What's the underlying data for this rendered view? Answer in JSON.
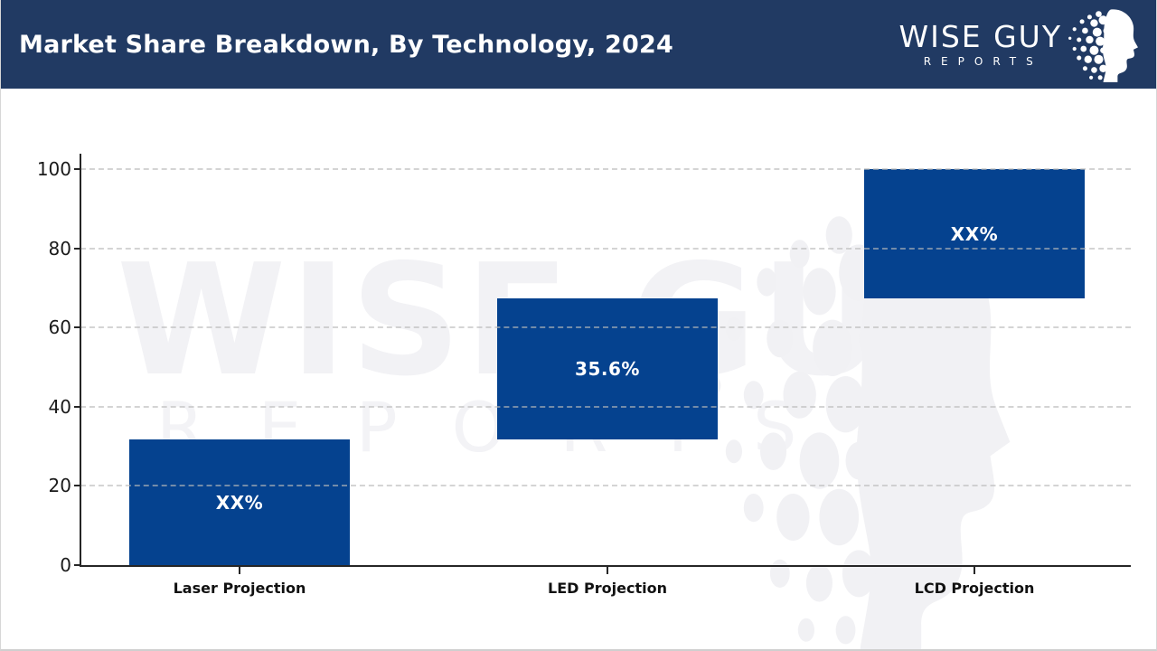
{
  "header": {
    "title": "Market Share Breakdown, By Technology, 2024",
    "logo": {
      "brand_line1": "WISE GUY",
      "brand_line2": "REPORTS"
    }
  },
  "watermark": {
    "line1": "WISE GUY",
    "line2": "REPORTS"
  },
  "chart_data": {
    "type": "bar",
    "variant": "waterfall",
    "title": "Market Share Breakdown, By Technology, 2024",
    "categories": [
      "Laser Projection",
      "LED Projection",
      "LCD Projection"
    ],
    "segments": [
      {
        "category": "Laser Projection",
        "start": 0,
        "end": 31.7,
        "value": 31.7,
        "value_label": "XX%"
      },
      {
        "category": "LED Projection",
        "start": 31.7,
        "end": 67.3,
        "value": 35.6,
        "value_label": "35.6%"
      },
      {
        "category": "LCD Projection",
        "start": 67.3,
        "end": 100,
        "value": 32.7,
        "value_label": "XX%"
      }
    ],
    "xlabel": "",
    "ylabel": "",
    "ylim": [
      0,
      100
    ],
    "yticks": [
      0,
      20,
      40,
      60,
      80,
      100
    ],
    "grid": {
      "horizontal": true,
      "style": "dashed",
      "drawn_over_bars": true
    },
    "legend": "none",
    "colors": {
      "bar": "#05428F",
      "header_bg": "#213A63",
      "axis": "#262626",
      "grid": "#D9D9D9",
      "bar_label_text": "#FFFFFF",
      "tick_label": "#1A1A1A"
    }
  }
}
